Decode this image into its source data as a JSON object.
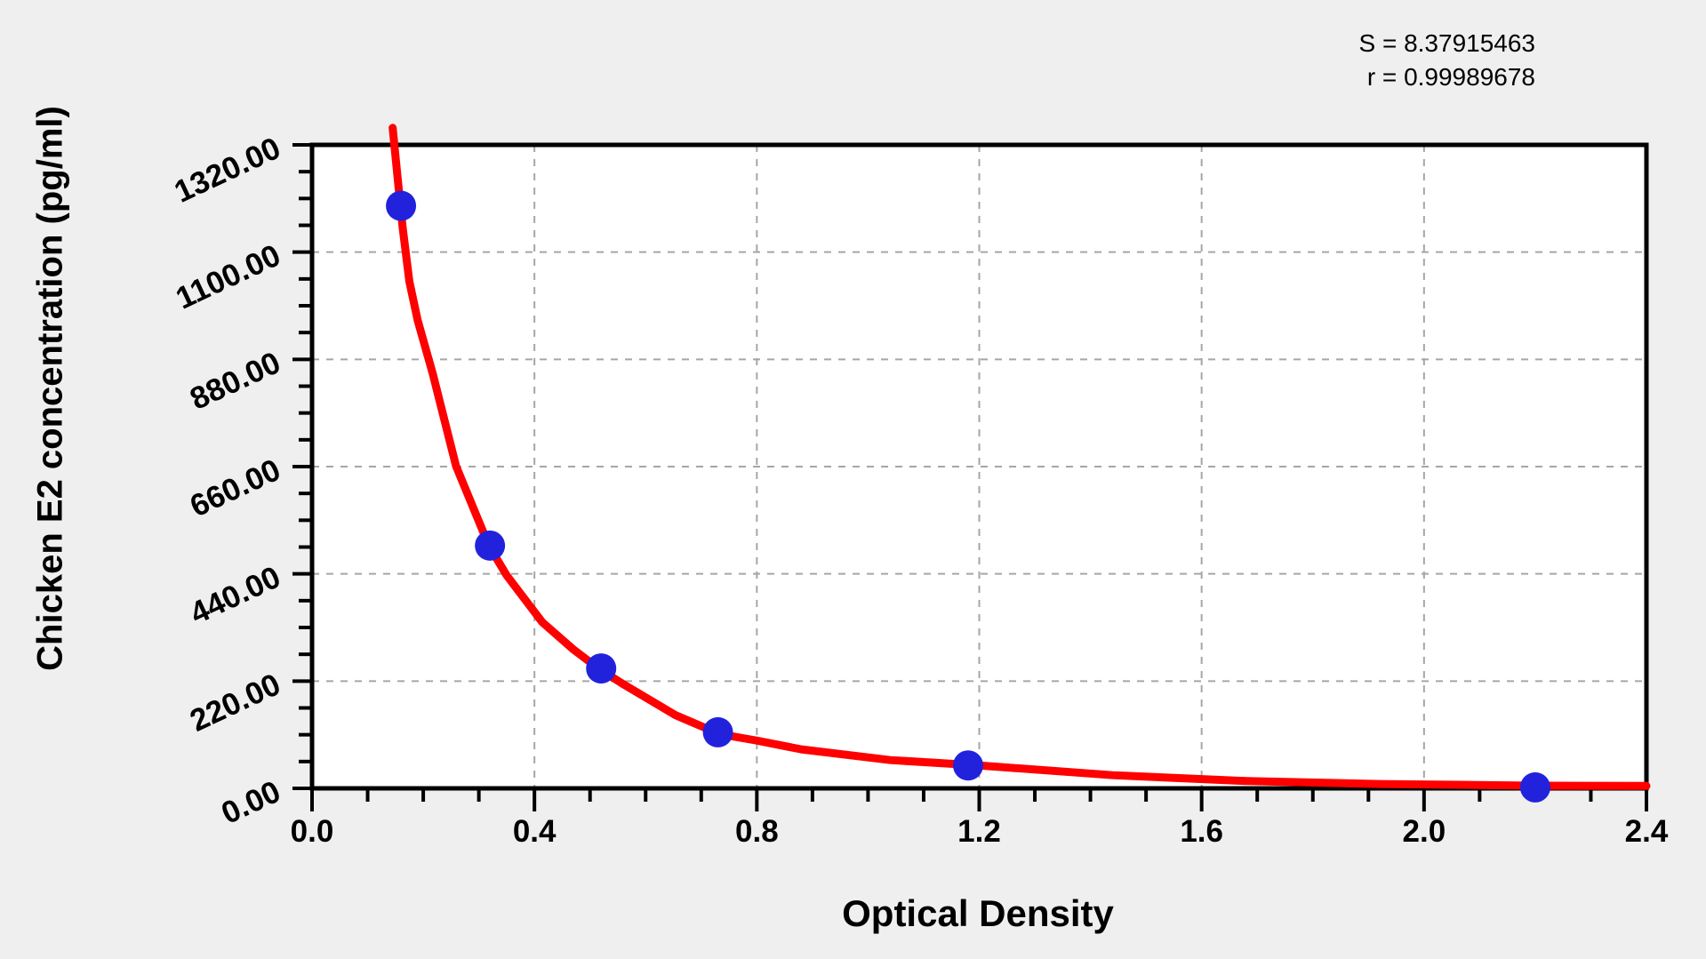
{
  "stats": {
    "s_label": "S = 8.37915463",
    "r_label": "r = 0.99989678"
  },
  "chart_data": {
    "type": "scatter",
    "title": "",
    "xlabel": "Optical Density",
    "ylabel": "Chicken E2 concentration (pg/ml)",
    "x_axis": {
      "min": 0.0,
      "max": 2.4,
      "major_step": 0.4,
      "minor_step": 0.1,
      "tick_labels": [
        "0.0",
        "0.4",
        "0.8",
        "1.2",
        "1.6",
        "2.0",
        "2.4"
      ]
    },
    "y_axis": {
      "min": 0.0,
      "max": 1320.0,
      "major_step": 220.0,
      "minor_step": 55.0,
      "tick_labels": [
        "0.00",
        "220.00",
        "440.00",
        "660.00",
        "880.00",
        "1100.00",
        "1320.00"
      ]
    },
    "grid": "dashed gray lines at interior major ticks",
    "legend": "none",
    "series": [
      {
        "name": "standard points",
        "type": "scatter",
        "x": [
          0.16,
          0.32,
          0.52,
          0.73,
          1.18,
          2.2
        ],
        "y": [
          1195,
          498,
          246,
          115,
          47,
          2
        ]
      },
      {
        "name": "fitted standard curve",
        "type": "line",
        "x": [
          0.145,
          0.155,
          0.163,
          0.175,
          0.19,
          0.217,
          0.259,
          0.318,
          0.35,
          0.414,
          0.47,
          0.515,
          0.558,
          0.654,
          0.734,
          0.8,
          0.88,
          1.04,
          1.2,
          1.44,
          1.68,
          1.92,
          2.2,
          2.4
        ],
        "y": [
          1355,
          1240,
          1150,
          1040,
          960,
          851,
          661,
          498,
          437,
          341,
          285,
          246,
          215,
          150,
          111,
          98,
          80,
          58,
          47,
          27,
          15,
          9,
          5.5,
          5
        ]
      }
    ],
    "colors": {
      "curve": "#ff0000",
      "point": "#2222dd",
      "grid": "#a6a6a6",
      "axis": "#000000",
      "plot_bg": "#ffffff",
      "page_bg": "#efefef",
      "text": "#000000"
    }
  }
}
